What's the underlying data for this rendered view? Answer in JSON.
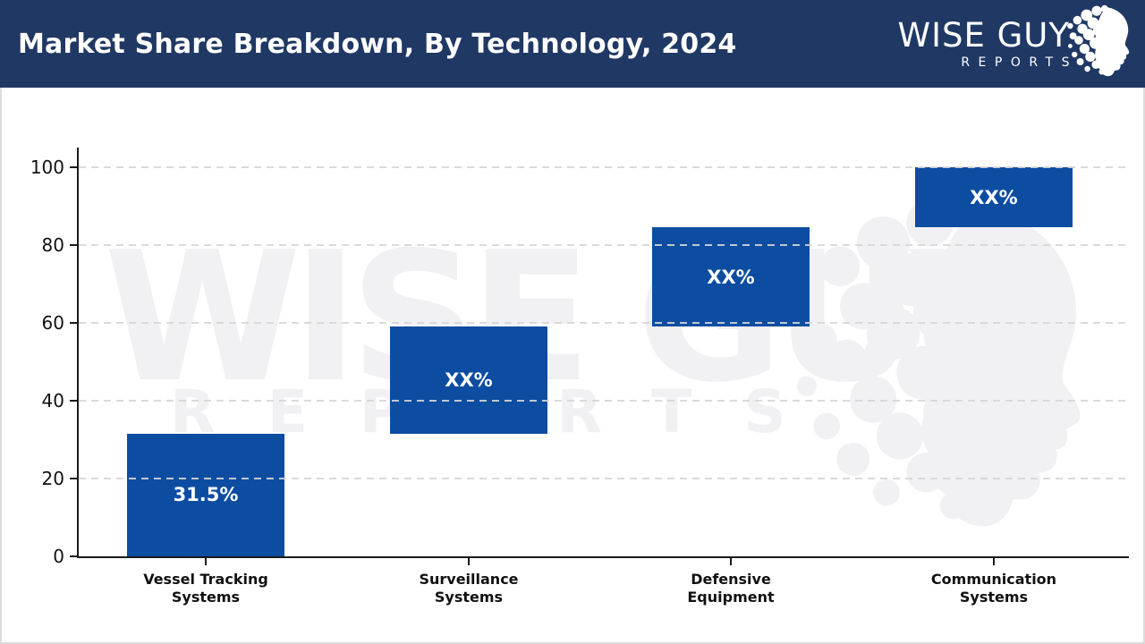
{
  "header": {
    "title": "Market Share Breakdown, By Technology, 2024",
    "logo": {
      "name": "WISE GUY",
      "sub": "REPORTS"
    }
  },
  "watermark": {
    "name": "WISE GUY",
    "sub": "REPORTS"
  },
  "colors": {
    "header_bg": "#203864",
    "bar": "#0c4da2",
    "bar_label": "#ffffff",
    "grid": "#d6d6d6",
    "axis": "#1a1a1a",
    "text": "#111111",
    "watermark": "#f1f1f4"
  },
  "chart_data": {
    "type": "bar",
    "subtype": "waterfall",
    "title": "Market Share Breakdown, By Technology, 2024",
    "categories": [
      "Vessel Tracking Systems",
      "Surveillance Systems",
      "Defensive Equipment",
      "Communication Systems"
    ],
    "category_lines": [
      [
        "Vessel Tracking",
        "Systems"
      ],
      [
        "Surveillance",
        "Systems"
      ],
      [
        "Defensive",
        "Equipment"
      ],
      [
        "Communication",
        "Systems"
      ]
    ],
    "segments": [
      {
        "category": "Vessel Tracking Systems",
        "start": 0,
        "end": 31.5,
        "label": "31.5%"
      },
      {
        "category": "Surveillance Systems",
        "start": 31.5,
        "end": 59,
        "label": "XX%"
      },
      {
        "category": "Defensive Equipment",
        "start": 59,
        "end": 84.5,
        "label": "XX%"
      },
      {
        "category": "Communication Systems",
        "start": 84.5,
        "end": 100,
        "label": "XX%"
      }
    ],
    "ylim": [
      0,
      100
    ],
    "yticks": [
      0,
      20,
      40,
      60,
      80,
      100
    ],
    "grid": "horizontal-dashed",
    "legend": "none",
    "xlabel": "",
    "ylabel": ""
  }
}
